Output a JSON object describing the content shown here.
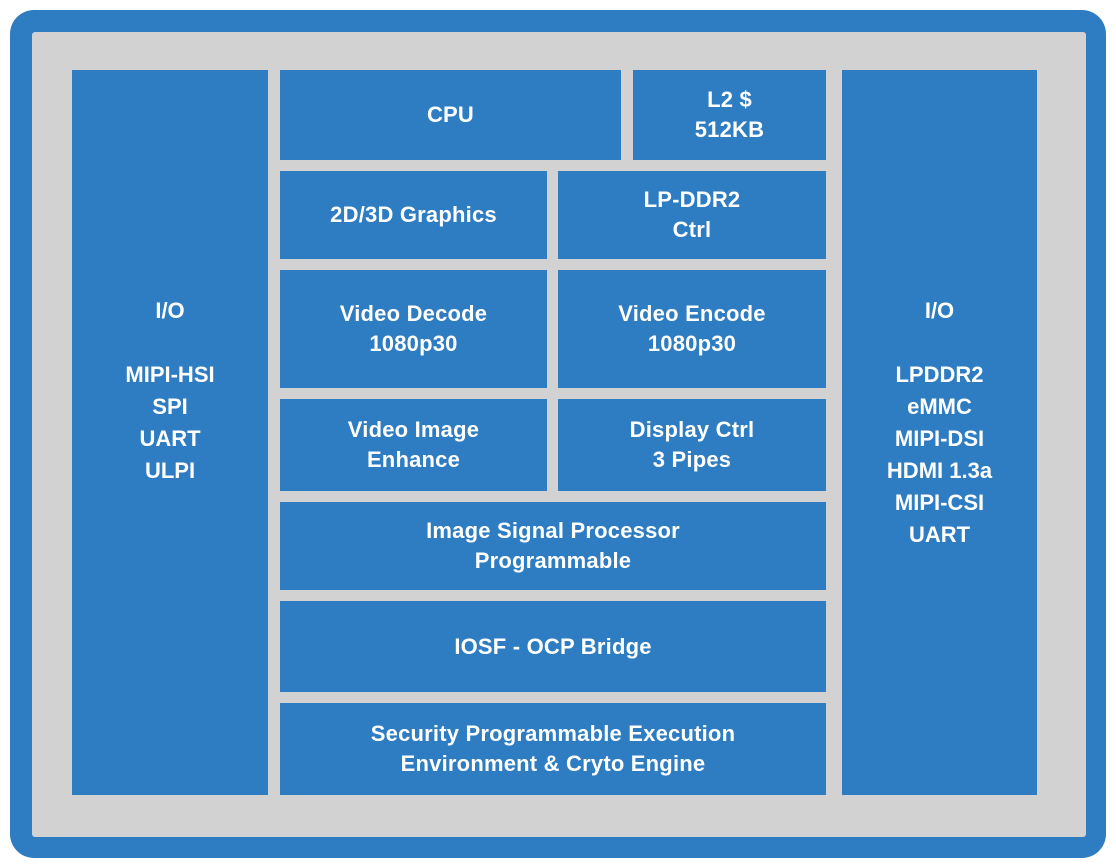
{
  "colors": {
    "block_blue": "#2E7CC1",
    "board_gray": "#D2D2D3",
    "text_white": "#FFFFFF"
  },
  "left_io": {
    "heading": "I/O",
    "items": [
      "MIPI-HSI",
      "SPI",
      "UART",
      "ULPI"
    ]
  },
  "right_io": {
    "heading": "I/O",
    "items": [
      "LPDDR2",
      "eMMC",
      "MIPI-DSI",
      "HDMI 1.3a",
      "MIPI-CSI",
      "UART"
    ]
  },
  "blocks": {
    "cpu": "CPU",
    "l2_cache": "L2 $\n512KB",
    "graphics_2d3d": "2D/3D Graphics",
    "lpddr2_ctrl": "LP-DDR2\nCtrl",
    "video_decode": "Video Decode\n1080p30",
    "video_encode": "Video Encode\n1080p30",
    "video_image_enhance": "Video Image\nEnhance",
    "display_ctrl": "Display Ctrl\n3 Pipes",
    "image_signal_processor": "Image Signal Processor\nProgrammable",
    "iosf_ocp_bridge": "IOSF - OCP Bridge",
    "security_engine": "Security Programmable Execution\nEnvironment & Cryto Engine"
  }
}
